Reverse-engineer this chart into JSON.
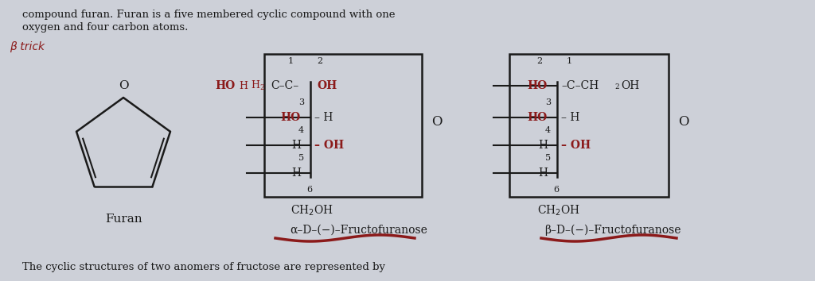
{
  "bg_color": "#cdd0d8",
  "text_color": "#1a1a1a",
  "red_color": "#8B1A1A",
  "title_lines": [
    "compound furan. Furan is a five membered cyclic compound with one",
    "oxygen and four carbon atoms."
  ],
  "furan_label": "Furan",
  "alpha_label": "α–D–(−)–Fructofuranose",
  "beta_label": "β–D–(−)–Fructofuranose",
  "bottom_text": "The cyclic structures of two anomers of fructose are represented by",
  "trick_text": "Β trick"
}
